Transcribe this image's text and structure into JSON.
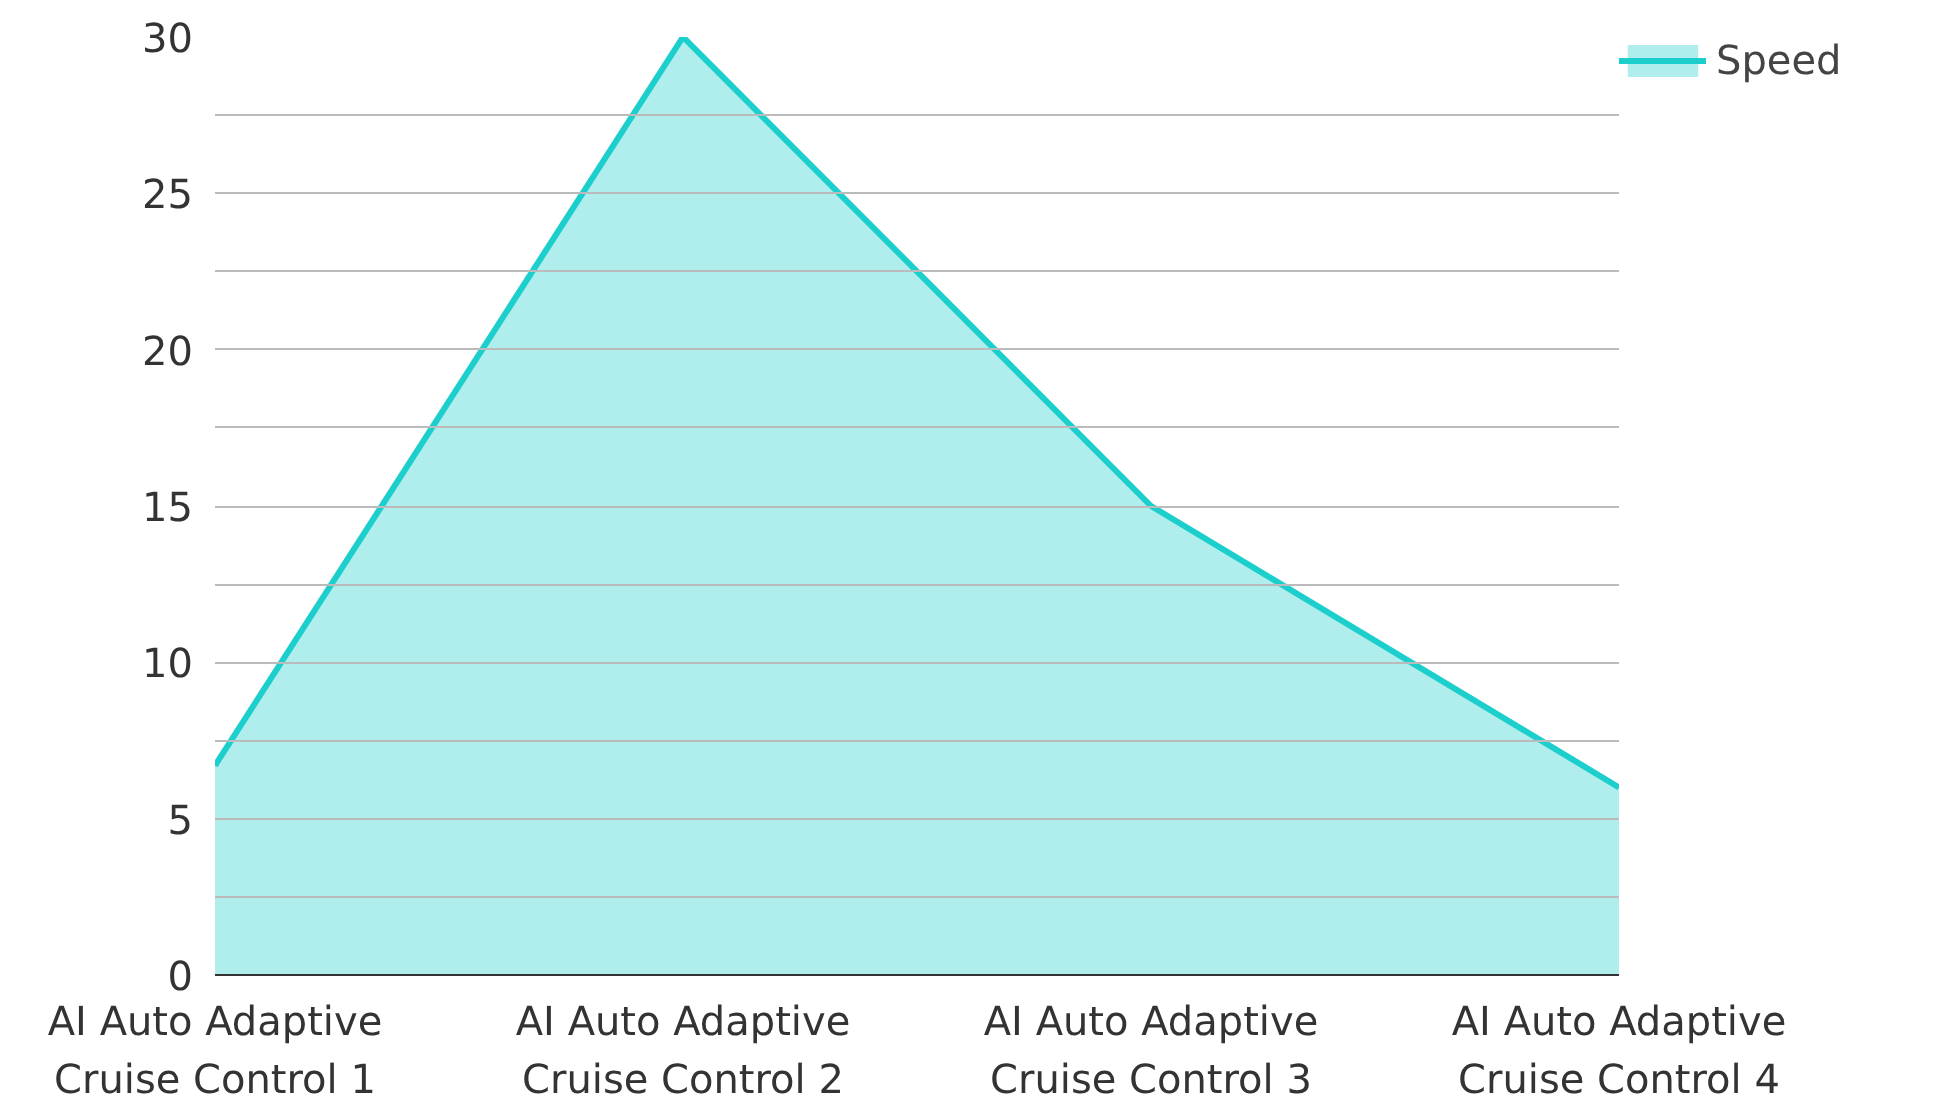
{
  "chart_data": {
    "type": "area",
    "categories": [
      "AI Auto Adaptive\nCruise Control 1",
      "AI Auto Adaptive\nCruise Control 2",
      "AI Auto Adaptive\nCruise Control 3",
      "AI Auto Adaptive\nCruise Control 4"
    ],
    "series": [
      {
        "name": "Speed",
        "color": "#1ccfcc",
        "values": [
          6.7,
          30,
          15,
          6
        ]
      }
    ],
    "ylim": [
      0,
      30
    ],
    "yticks": [
      0,
      {
        "value": 2.5,
        "label": null
      },
      5,
      {
        "value": 7.5,
        "label": null
      },
      10,
      {
        "value": 12.5,
        "label": null
      },
      15,
      {
        "value": 17.5,
        "label": null
      },
      20,
      {
        "value": 22.5,
        "label": null
      },
      25,
      {
        "value": 27.5,
        "label": null
      },
      30
    ],
    "grid": "y",
    "legend": "top right"
  }
}
